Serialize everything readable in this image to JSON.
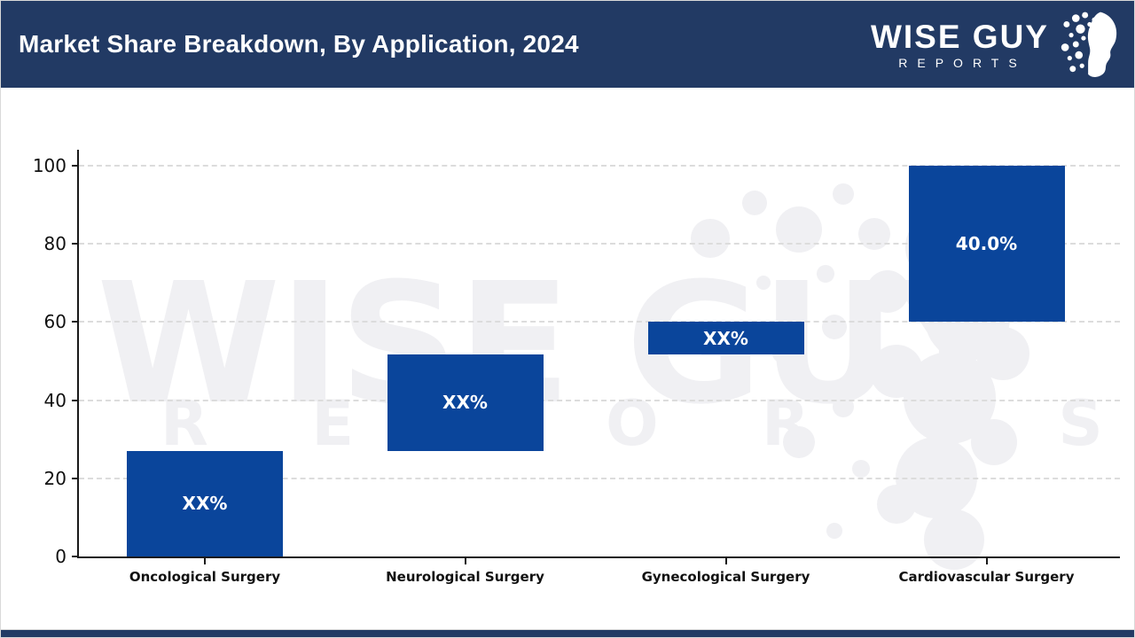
{
  "header": {
    "title": "Market Share Breakdown, By Application, 2024",
    "logo": {
      "line1": "WISE GUY",
      "line2": "REPORTS"
    }
  },
  "watermark": {
    "line1": "WISE GUY",
    "line2": "R E P O R T S"
  },
  "chart_data": {
    "type": "bar",
    "subtype": "floating-waterfall",
    "title": "Market Share Breakdown, By Application, 2024",
    "categories": [
      "Oncological Surgery",
      "Neurological Surgery",
      "Gynecological Surgery",
      "Cardiovascular Surgery"
    ],
    "bars": [
      {
        "start": 0,
        "end": 27,
        "label": "XX%"
      },
      {
        "start": 27,
        "end": 51.7,
        "label": "XX%"
      },
      {
        "start": 51.7,
        "end": 60,
        "label": "XX%"
      },
      {
        "start": 60,
        "end": 100,
        "label": "40.0%"
      }
    ],
    "yticks": [
      0,
      20,
      40,
      60,
      80,
      100
    ],
    "ylim": [
      0,
      104
    ],
    "xlabel": "",
    "ylabel": "",
    "grid": "horizontal-dashed",
    "legend": "none",
    "bar_color": "#0A459B",
    "bar_label_color": "#ffffff",
    "axis_color": "#1a1a1a",
    "gridline_color": "#dcdcdc"
  },
  "colors": {
    "header_bg": "#223A64",
    "footer_bg": "#223A64",
    "watermark": "#f0f0f3",
    "page_bg": "#ffffff"
  }
}
